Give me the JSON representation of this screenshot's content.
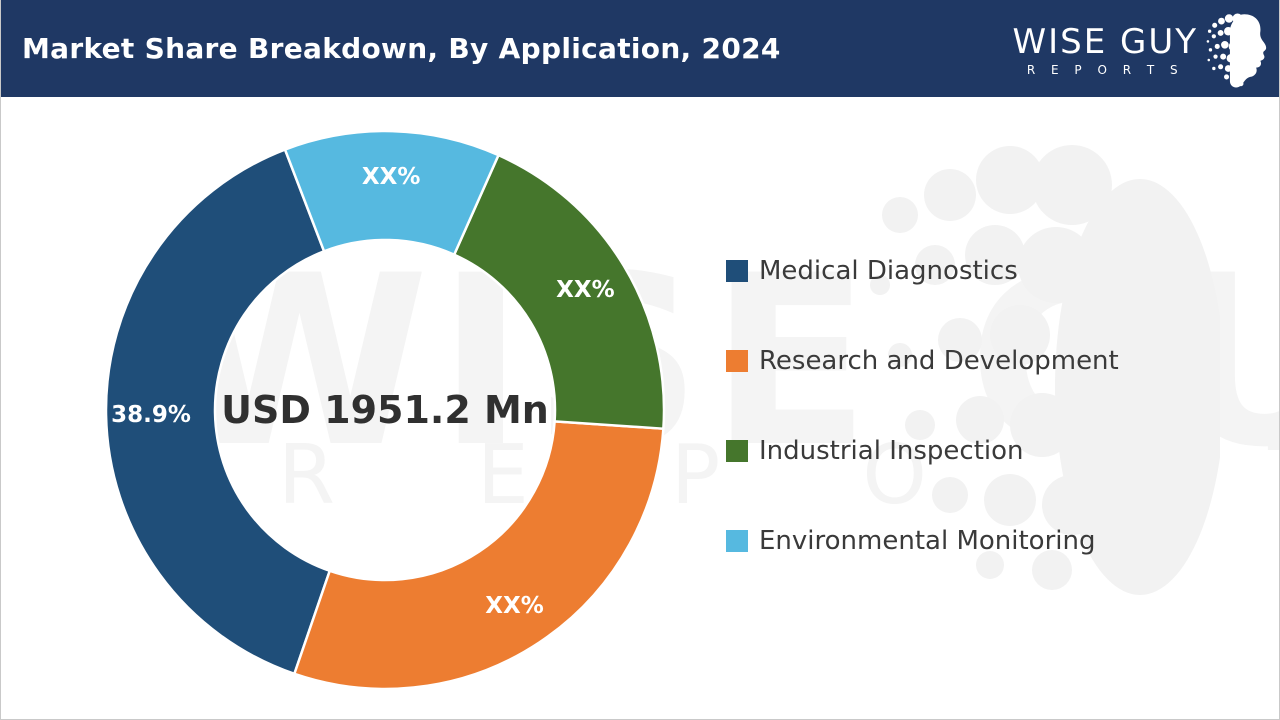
{
  "header": {
    "title": "Market Share Breakdown, By Application, 2024",
    "bg_color": "#1F3864",
    "logo": {
      "name_line": "WISE GUY",
      "sub_line": "R E P O R T S"
    }
  },
  "watermark": {
    "big_text": "WISE GUY",
    "sub_text": "R E P O R T S"
  },
  "colors": {
    "header_bg": "#1F3864",
    "medical_diagnostics": "#1F4E79",
    "research_and_development": "#ED7D31",
    "industrial_inspection": "#45762C",
    "environmental_monitoring": "#56B9E0",
    "center_text": "#303030",
    "legend_text": "#3A3A3A",
    "watermark": "#F4F4F4",
    "slice_label": "#FFFFFF"
  },
  "chart_data": {
    "type": "pie",
    "subtype": "donut",
    "title": "Market Share Breakdown, By Application, 2024",
    "center_label": "USD 1951.2 Mn",
    "legend_position": "right",
    "rotation_end_deg": 339,
    "outer_radius_px": 279,
    "inner_radius_px": 170,
    "segments": [
      {
        "label": "Medical Diagnostics",
        "display_value": "38.9%",
        "value_pct": 38.9,
        "color": "#1F4E79"
      },
      {
        "label": "Research and Development",
        "display_value": "XX%",
        "value_pct": 29.2,
        "color": "#ED7D31"
      },
      {
        "label": "Industrial Inspection",
        "display_value": "XX%",
        "value_pct": 19.4,
        "color": "#45762C"
      },
      {
        "label": "Environmental Monitoring",
        "display_value": "XX%",
        "value_pct": 12.5,
        "color": "#56B9E0"
      }
    ]
  }
}
